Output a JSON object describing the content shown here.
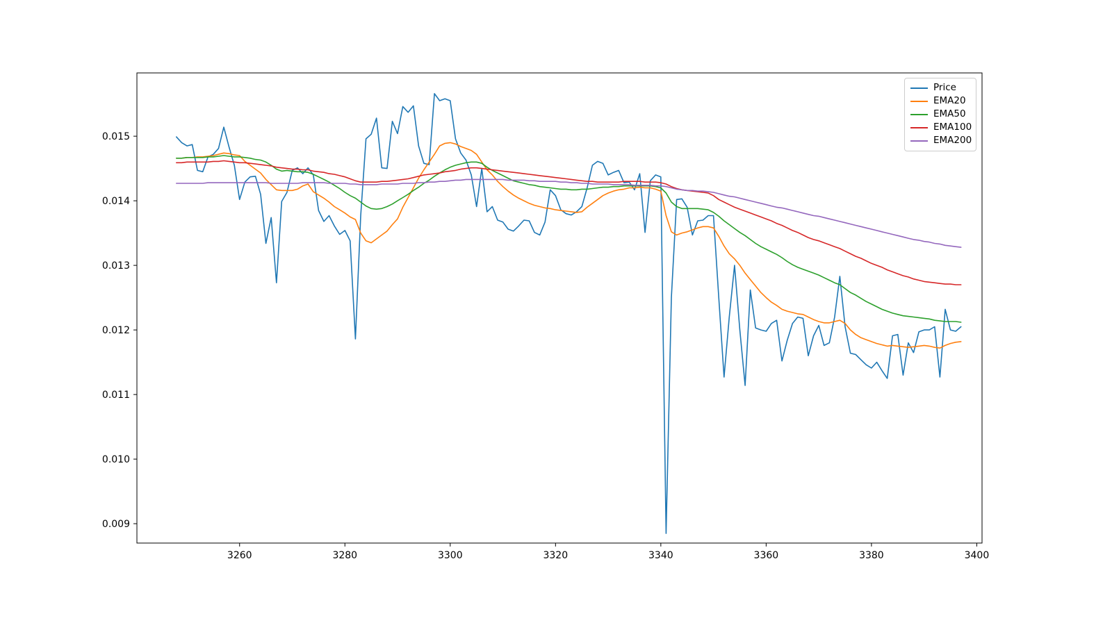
{
  "figure": {
    "background": "#ffffff"
  },
  "legend": {
    "position": "upper-right",
    "items": [
      {
        "label": "Price",
        "color": "#1f77b4"
      },
      {
        "label": "EMA20",
        "color": "#ff7f0e"
      },
      {
        "label": "EMA50",
        "color": "#2ca02c"
      },
      {
        "label": "EMA100",
        "color": "#d62728"
      },
      {
        "label": "EMA200",
        "color": "#9467bd"
      }
    ]
  },
  "chart_data": {
    "type": "line",
    "title": "",
    "xlabel": "",
    "ylabel": "",
    "grid": false,
    "legend_position": "upper right",
    "xlim": [
      3240.5,
      3401.0
    ],
    "ylim": [
      0.0087,
      0.01598
    ],
    "x_ticks": [
      3260,
      3280,
      3300,
      3320,
      3340,
      3360,
      3380,
      3400
    ],
    "x_tick_labels": [
      "3260",
      "3280",
      "3300",
      "3320",
      "3340",
      "3360",
      "3380",
      "3400"
    ],
    "y_ticks": [
      0.009,
      0.01,
      0.011,
      0.012,
      0.013,
      0.014,
      0.015
    ],
    "y_tick_labels": [
      "0.009",
      "0.010",
      "0.011",
      "0.012",
      "0.013",
      "0.014",
      "0.015"
    ],
    "x_start": 3248,
    "x_step": 1,
    "series": [
      {
        "name": "Price",
        "color": "#1f77b4",
        "values": [
          0.01499,
          0.0149,
          0.01485,
          0.01487,
          0.01447,
          0.01445,
          0.01468,
          0.01472,
          0.01481,
          0.01514,
          0.01483,
          0.01455,
          0.01402,
          0.01429,
          0.01437,
          0.01438,
          0.0141,
          0.01334,
          0.01374,
          0.01273,
          0.01399,
          0.01413,
          0.01447,
          0.01451,
          0.01442,
          0.01451,
          0.0144,
          0.01385,
          0.01368,
          0.01377,
          0.01361,
          0.01348,
          0.01354,
          0.01338,
          0.01186,
          0.01377,
          0.01496,
          0.01503,
          0.01528,
          0.01451,
          0.0145,
          0.01523,
          0.01504,
          0.01546,
          0.01537,
          0.01547,
          0.01485,
          0.01458,
          0.01456,
          0.01566,
          0.01555,
          0.01558,
          0.01555,
          0.01496,
          0.01474,
          0.01463,
          0.0144,
          0.01391,
          0.0145,
          0.01383,
          0.01391,
          0.0137,
          0.01367,
          0.01356,
          0.01353,
          0.01361,
          0.0137,
          0.01369,
          0.01351,
          0.01347,
          0.01367,
          0.01417,
          0.01408,
          0.01386,
          0.0138,
          0.01378,
          0.01383,
          0.01391,
          0.0142,
          0.01455,
          0.01461,
          0.01458,
          0.0144,
          0.01444,
          0.01447,
          0.01428,
          0.01429,
          0.01417,
          0.01442,
          0.01351,
          0.01431,
          0.0144,
          0.01437,
          0.00885,
          0.0125,
          0.01402,
          0.01403,
          0.0139,
          0.01347,
          0.01369,
          0.0137,
          0.01377,
          0.01377,
          0.0125,
          0.01127,
          0.0122,
          0.013,
          0.012,
          0.01114,
          0.01262,
          0.01203,
          0.012,
          0.01198,
          0.0121,
          0.01215,
          0.01152,
          0.01184,
          0.0121,
          0.0122,
          0.01218,
          0.0116,
          0.01191,
          0.01207,
          0.01176,
          0.0118,
          0.0122,
          0.01283,
          0.01205,
          0.01164,
          0.01162,
          0.01154,
          0.01146,
          0.01141,
          0.0115,
          0.01137,
          0.01125,
          0.01191,
          0.01193,
          0.0113,
          0.0118,
          0.01165,
          0.01197,
          0.012,
          0.012,
          0.01205,
          0.01127,
          0.01232,
          0.012,
          0.01198,
          0.01205
        ]
      },
      {
        "name": "EMA20",
        "color": "#ff7f0e",
        "values": [
          0.01466,
          0.01466,
          0.01467,
          0.01467,
          0.01468,
          0.01468,
          0.01469,
          0.0147,
          0.01472,
          0.01474,
          0.01473,
          0.01471,
          0.0147,
          0.01461,
          0.01455,
          0.01449,
          0.01443,
          0.01433,
          0.01425,
          0.01417,
          0.01416,
          0.01416,
          0.01416,
          0.01418,
          0.01423,
          0.01426,
          0.01414,
          0.01409,
          0.01404,
          0.01398,
          0.01391,
          0.01386,
          0.01381,
          0.01375,
          0.01371,
          0.0135,
          0.01338,
          0.01335,
          0.01341,
          0.01347,
          0.01353,
          0.01363,
          0.01372,
          0.0139,
          0.01405,
          0.0142,
          0.01435,
          0.01448,
          0.0146,
          0.01472,
          0.01485,
          0.01489,
          0.0149,
          0.01488,
          0.01484,
          0.01481,
          0.01478,
          0.01472,
          0.0146,
          0.01448,
          0.0144,
          0.0143,
          0.01422,
          0.01415,
          0.01409,
          0.01404,
          0.014,
          0.01396,
          0.01393,
          0.01391,
          0.01389,
          0.01388,
          0.01386,
          0.01385,
          0.01384,
          0.01383,
          0.01382,
          0.01383,
          0.0139,
          0.01396,
          0.01402,
          0.01408,
          0.01412,
          0.01415,
          0.01417,
          0.01418,
          0.0142,
          0.0142,
          0.01421,
          0.0142,
          0.0142,
          0.01418,
          0.01415,
          0.01377,
          0.01352,
          0.01347,
          0.0135,
          0.01352,
          0.01355,
          0.01358,
          0.0136,
          0.0136,
          0.01358,
          0.01345,
          0.0133,
          0.01318,
          0.0131,
          0.013,
          0.01288,
          0.01278,
          0.01268,
          0.01258,
          0.0125,
          0.01243,
          0.01238,
          0.01232,
          0.01229,
          0.01227,
          0.01225,
          0.01224,
          0.0122,
          0.01216,
          0.01213,
          0.01211,
          0.01211,
          0.01213,
          0.01215,
          0.0121,
          0.012,
          0.01193,
          0.01188,
          0.01185,
          0.01182,
          0.01179,
          0.01177,
          0.01175,
          0.01176,
          0.01175,
          0.01174,
          0.01173,
          0.01174,
          0.01175,
          0.01176,
          0.01175,
          0.01173,
          0.01172,
          0.01176,
          0.01179,
          0.01181,
          0.01182
        ]
      },
      {
        "name": "EMA50",
        "color": "#2ca02c",
        "values": [
          0.01466,
          0.01466,
          0.01467,
          0.01467,
          0.01467,
          0.01467,
          0.01468,
          0.01468,
          0.01469,
          0.0147,
          0.01469,
          0.01468,
          0.01468,
          0.01467,
          0.01466,
          0.01464,
          0.01463,
          0.0146,
          0.01455,
          0.01449,
          0.01446,
          0.01447,
          0.01446,
          0.01445,
          0.01445,
          0.01444,
          0.01441,
          0.01437,
          0.01433,
          0.01429,
          0.01424,
          0.01419,
          0.01413,
          0.01408,
          0.01404,
          0.01398,
          0.01392,
          0.01388,
          0.01387,
          0.01388,
          0.01391,
          0.01395,
          0.014,
          0.01405,
          0.0141,
          0.01416,
          0.01421,
          0.01427,
          0.01432,
          0.01438,
          0.01443,
          0.01448,
          0.01452,
          0.01455,
          0.01457,
          0.01459,
          0.0146,
          0.0146,
          0.01458,
          0.01452,
          0.01447,
          0.01443,
          0.01439,
          0.01435,
          0.01431,
          0.01429,
          0.01427,
          0.01425,
          0.01424,
          0.01422,
          0.01421,
          0.0142,
          0.01419,
          0.01418,
          0.01418,
          0.01417,
          0.01417,
          0.01418,
          0.01418,
          0.01419,
          0.0142,
          0.01421,
          0.01421,
          0.01422,
          0.01422,
          0.01423,
          0.01423,
          0.01423,
          0.01423,
          0.01423,
          0.01423,
          0.01422,
          0.0142,
          0.01412,
          0.01398,
          0.01391,
          0.01388,
          0.01388,
          0.01388,
          0.01388,
          0.01387,
          0.01386,
          0.01382,
          0.01376,
          0.01369,
          0.01363,
          0.01357,
          0.01351,
          0.01346,
          0.0134,
          0.01334,
          0.01329,
          0.01325,
          0.01321,
          0.01317,
          0.01312,
          0.01306,
          0.01301,
          0.01297,
          0.01294,
          0.01291,
          0.01288,
          0.01285,
          0.01281,
          0.01277,
          0.01273,
          0.0127,
          0.01264,
          0.01258,
          0.01254,
          0.01249,
          0.01244,
          0.0124,
          0.01236,
          0.01232,
          0.01229,
          0.01226,
          0.01224,
          0.01222,
          0.01221,
          0.0122,
          0.01219,
          0.01218,
          0.01217,
          0.01215,
          0.01214,
          0.01213,
          0.01213,
          0.01213,
          0.01212
        ]
      },
      {
        "name": "EMA100",
        "color": "#d62728",
        "values": [
          0.01459,
          0.01459,
          0.0146,
          0.0146,
          0.0146,
          0.0146,
          0.0146,
          0.01461,
          0.01461,
          0.01462,
          0.01461,
          0.0146,
          0.01459,
          0.01459,
          0.01458,
          0.01457,
          0.01456,
          0.01455,
          0.01454,
          0.01452,
          0.01451,
          0.0145,
          0.01449,
          0.01449,
          0.01448,
          0.01448,
          0.01446,
          0.01445,
          0.01444,
          0.01442,
          0.01441,
          0.01439,
          0.01437,
          0.01434,
          0.01431,
          0.01429,
          0.01429,
          0.01429,
          0.01429,
          0.0143,
          0.0143,
          0.01431,
          0.01432,
          0.01433,
          0.01434,
          0.01436,
          0.01438,
          0.0144,
          0.01441,
          0.01442,
          0.01443,
          0.01445,
          0.01446,
          0.01447,
          0.01449,
          0.0145,
          0.01451,
          0.01451,
          0.0145,
          0.01449,
          0.01448,
          0.01447,
          0.01446,
          0.01445,
          0.01444,
          0.01443,
          0.01442,
          0.01441,
          0.0144,
          0.01439,
          0.01438,
          0.01437,
          0.01436,
          0.01435,
          0.01434,
          0.01433,
          0.01432,
          0.01431,
          0.0143,
          0.0143,
          0.01429,
          0.01429,
          0.01429,
          0.01429,
          0.01429,
          0.0143,
          0.0143,
          0.0143,
          0.0143,
          0.01429,
          0.01429,
          0.01429,
          0.01428,
          0.01426,
          0.01422,
          0.01419,
          0.01417,
          0.01416,
          0.01415,
          0.01414,
          0.01413,
          0.01412,
          0.01408,
          0.01402,
          0.01398,
          0.01394,
          0.0139,
          0.01387,
          0.01384,
          0.01381,
          0.01378,
          0.01375,
          0.01372,
          0.01369,
          0.01365,
          0.01362,
          0.01358,
          0.01354,
          0.01351,
          0.01347,
          0.01343,
          0.0134,
          0.01338,
          0.01335,
          0.01332,
          0.01329,
          0.01326,
          0.01322,
          0.01318,
          0.01314,
          0.01311,
          0.01307,
          0.01303,
          0.013,
          0.01297,
          0.01293,
          0.0129,
          0.01287,
          0.01284,
          0.01282,
          0.01279,
          0.01277,
          0.01275,
          0.01274,
          0.01273,
          0.01272,
          0.01271,
          0.01271,
          0.0127,
          0.0127
        ]
      },
      {
        "name": "EMA200",
        "color": "#9467bd",
        "values": [
          0.01427,
          0.01427,
          0.01427,
          0.01427,
          0.01427,
          0.01427,
          0.01428,
          0.01428,
          0.01428,
          0.01428,
          0.01428,
          0.01428,
          0.01428,
          0.01428,
          0.01428,
          0.01428,
          0.01428,
          0.01428,
          0.01427,
          0.01427,
          0.01427,
          0.01427,
          0.01427,
          0.01427,
          0.01428,
          0.01428,
          0.01428,
          0.01428,
          0.01428,
          0.01427,
          0.01427,
          0.01427,
          0.01427,
          0.01426,
          0.01426,
          0.01425,
          0.01425,
          0.01425,
          0.01425,
          0.01426,
          0.01426,
          0.01426,
          0.01426,
          0.01427,
          0.01427,
          0.01427,
          0.01428,
          0.01428,
          0.01429,
          0.01429,
          0.0143,
          0.0143,
          0.01431,
          0.01432,
          0.01432,
          0.01433,
          0.01433,
          0.01433,
          0.01433,
          0.01433,
          0.01433,
          0.01433,
          0.01433,
          0.01432,
          0.01432,
          0.01432,
          0.01432,
          0.01431,
          0.01431,
          0.0143,
          0.0143,
          0.0143,
          0.0143,
          0.01429,
          0.01429,
          0.01428,
          0.01428,
          0.01427,
          0.01427,
          0.01426,
          0.01426,
          0.01426,
          0.01426,
          0.01425,
          0.01425,
          0.01425,
          0.01425,
          0.01424,
          0.01424,
          0.01424,
          0.01424,
          0.01423,
          0.01423,
          0.01422,
          0.0142,
          0.01418,
          0.01417,
          0.01416,
          0.01416,
          0.01415,
          0.01415,
          0.01414,
          0.01413,
          0.01411,
          0.01409,
          0.01407,
          0.01406,
          0.01404,
          0.01402,
          0.014,
          0.01398,
          0.01396,
          0.01394,
          0.01392,
          0.0139,
          0.01389,
          0.01387,
          0.01385,
          0.01383,
          0.01381,
          0.01379,
          0.01377,
          0.01376,
          0.01374,
          0.01372,
          0.0137,
          0.01368,
          0.01366,
          0.01364,
          0.01362,
          0.0136,
          0.01358,
          0.01356,
          0.01354,
          0.01352,
          0.0135,
          0.01348,
          0.01346,
          0.01344,
          0.01342,
          0.0134,
          0.01339,
          0.01337,
          0.01336,
          0.01334,
          0.01333,
          0.01331,
          0.0133,
          0.01329,
          0.01328
        ]
      }
    ]
  }
}
